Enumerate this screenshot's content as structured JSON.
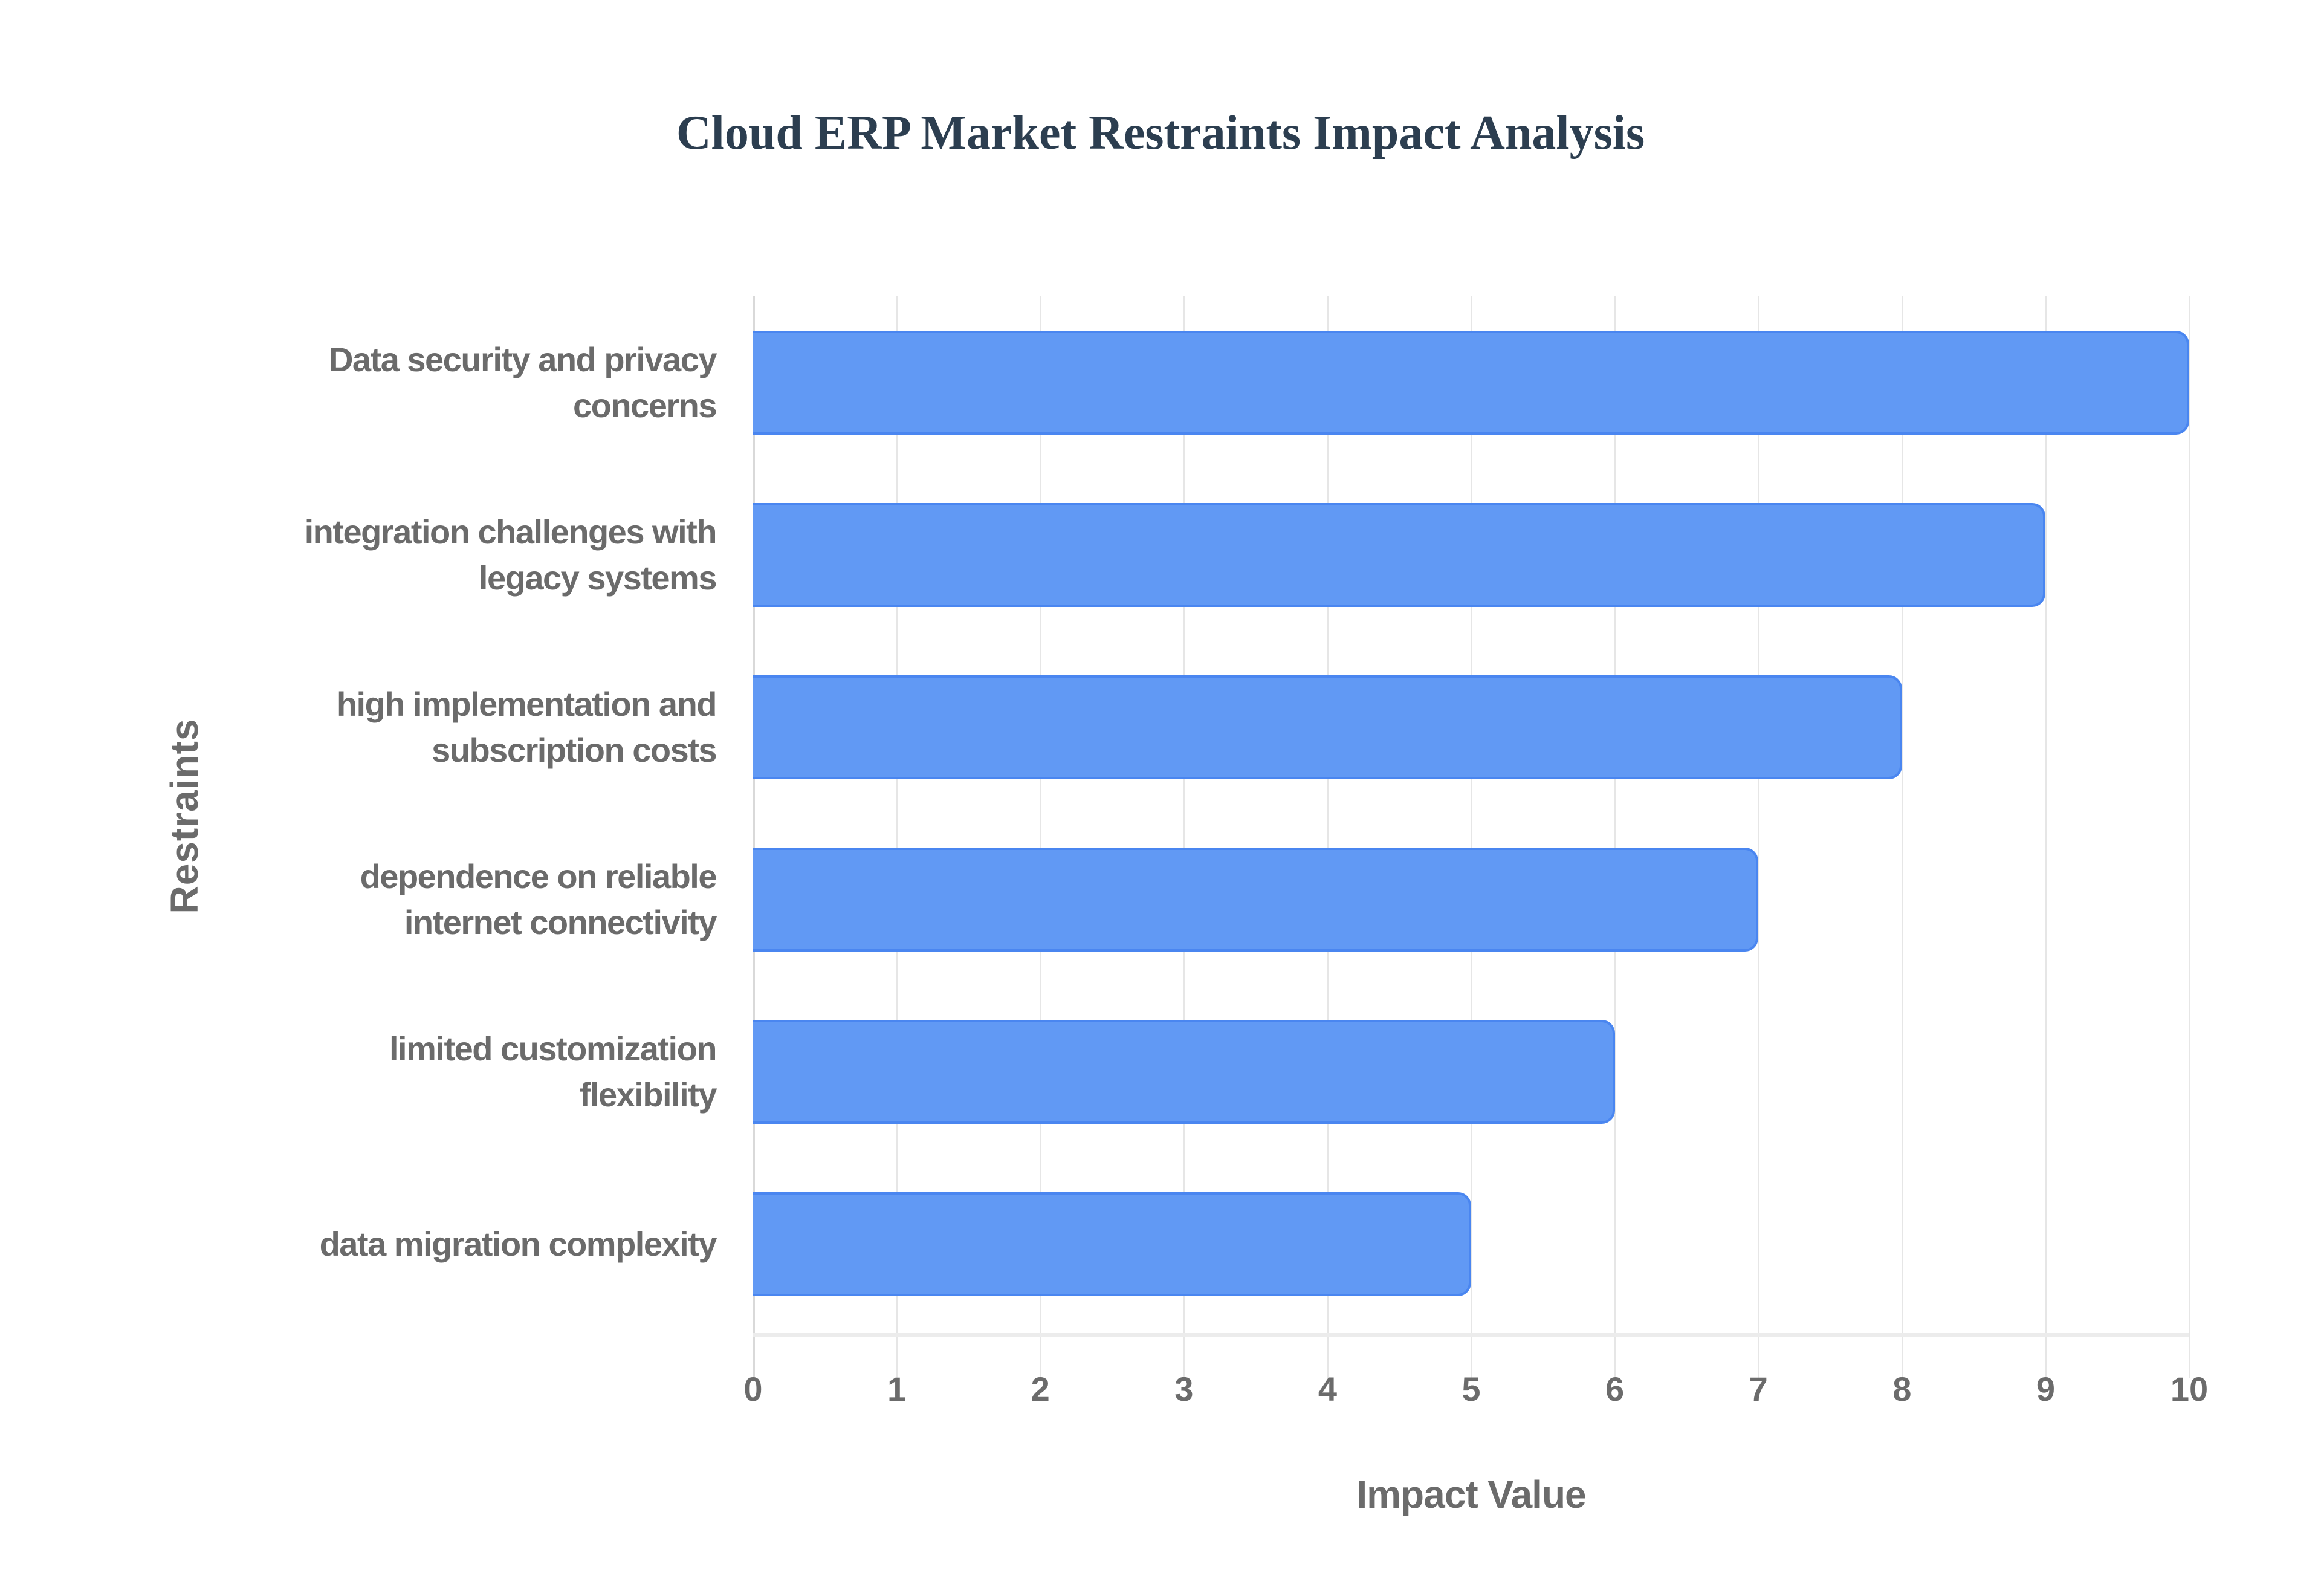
{
  "chart_data": {
    "type": "bar",
    "orientation": "horizontal",
    "title": "Cloud ERP Market Restraints Impact Analysis",
    "xlabel": "Impact Value",
    "ylabel": "Restraints",
    "categories": [
      "Data security and privacy concerns",
      "integration challenges with legacy systems",
      "high implementation and subscription costs",
      "dependence on reliable internet connectivity",
      "limited customization flexibility",
      "data migration complexity"
    ],
    "values": [
      10,
      9,
      8,
      7,
      6,
      5
    ],
    "xlim": [
      0,
      10
    ],
    "x_ticks": [
      "0",
      "1",
      "2",
      "3",
      "4",
      "5",
      "6",
      "7",
      "8",
      "9",
      "10"
    ],
    "grid": true,
    "legend": null,
    "colors": {
      "bar_fill": "#6199f4",
      "bar_border": "#4a86f0",
      "title": "#2c3e50",
      "axis_text": "#6b6b6b",
      "grid": "#e6e6e6"
    }
  },
  "labels": {
    "title": "Cloud ERP Market Restraints Impact Analysis",
    "x_title": "Impact Value",
    "y_title": "Restraints",
    "y_categories": [
      [
        "Data security and privacy",
        "concerns"
      ],
      [
        "integration challenges with",
        "legacy systems"
      ],
      [
        "high implementation and",
        "subscription costs"
      ],
      [
        "dependence on reliable",
        "internet connectivity"
      ],
      [
        "limited customization",
        "flexibility"
      ],
      [
        "data migration complexity"
      ]
    ]
  }
}
